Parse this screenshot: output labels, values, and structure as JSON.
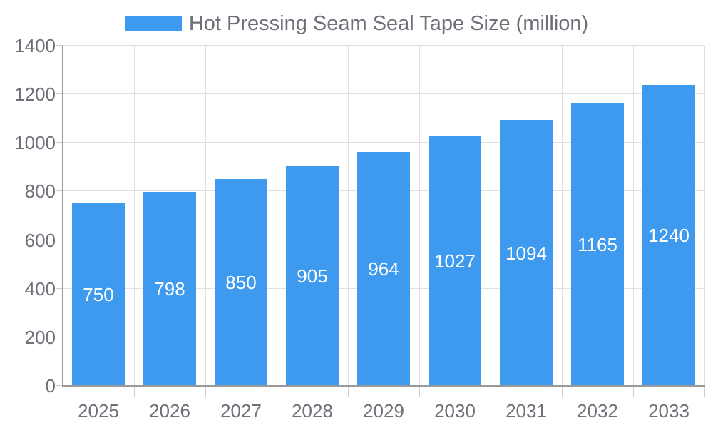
{
  "chart_data": {
    "type": "bar",
    "title": "Hot Pressing Seam Seal Tape Size (million)",
    "categories": [
      "2025",
      "2026",
      "2027",
      "2028",
      "2029",
      "2030",
      "2031",
      "2032",
      "2033"
    ],
    "values": [
      750,
      798,
      850,
      905,
      964,
      1027,
      1094,
      1165,
      1240
    ],
    "xlabel": "",
    "ylabel": "",
    "ylim": [
      0,
      1400
    ],
    "yticks": [
      0,
      200,
      400,
      600,
      800,
      1000,
      1200,
      1400
    ],
    "grid": true,
    "legend_position": "top",
    "colors": {
      "bar": "#3D9AEE",
      "value_label": "#FFFFFF",
      "axis_text": "#6E7079",
      "grid_line": "#E0E0E0",
      "axis_line": "#999999",
      "tick_line": "#CCCCCC",
      "background": "#FFFFFF"
    }
  }
}
